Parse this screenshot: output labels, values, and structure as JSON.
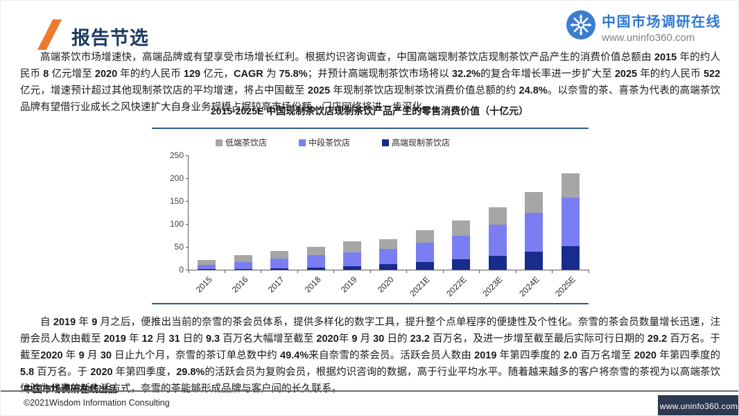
{
  "header": {
    "title": "报告节选",
    "logo_name": "中国市场调研在线",
    "logo_url": "www.uninfo360.com"
  },
  "colors": {
    "accent_orange": "#ee7b2d",
    "title_navy": "#1e3a60",
    "logo_blue": "#2e78cf",
    "chart_frame_blue": "#2d5b8e",
    "footer_bar_navy": "#2c3950"
  },
  "paragraphs": {
    "p1": [
      {
        "t": "高端茶饮市场增速快，高端品牌或有望享受市场增长红利。根据灼识咨询调查，中国高端现制茶饮店现制茶饮产品产生的消费价值总额由 "
      },
      {
        "t": "2015",
        "b": true
      },
      {
        "t": " 年的约人民币 "
      },
      {
        "t": "8",
        "b": true
      },
      {
        "t": " 亿元增至 "
      },
      {
        "t": "2020",
        "b": true
      },
      {
        "t": " 年的约人民币 "
      },
      {
        "t": "129",
        "b": true
      },
      {
        "t": " 亿元，"
      },
      {
        "t": "CAGR",
        "b": true
      },
      {
        "t": " 为 "
      },
      {
        "t": "75.8%",
        "b": true
      },
      {
        "t": "；并预计高端现制茶饮市场将以 "
      },
      {
        "t": "32.2%",
        "b": true
      },
      {
        "t": "的复合年增长率进一步扩大至 "
      },
      {
        "t": "2025",
        "b": true
      },
      {
        "t": " 年的约人民币 "
      },
      {
        "t": "522",
        "b": true
      },
      {
        "t": " 亿元，增速预计超过其他现制茶饮店的平均增速，将占中国截至 "
      },
      {
        "t": "2025",
        "b": true
      },
      {
        "t": " 年现制茶饮店现制茶饮消费价值总额的约 "
      },
      {
        "t": "24.8%",
        "b": true
      },
      {
        "t": "。以奈雪的茶、喜茶为代表的高端茶饮品牌有望借行业成长之风快速扩大自身业务规模占据较高市场份额，门店网络将进一步深化。"
      }
    ],
    "p2": [
      {
        "t": "自 "
      },
      {
        "t": "2019",
        "b": true
      },
      {
        "t": " 年 "
      },
      {
        "t": "9",
        "b": true
      },
      {
        "t": " 月之后，便推出当前的奈雪的茶会员体系，提供多样化的数字工具，提升整个点单程序的便捷性及个性化。奈雪的茶会员数量增长迅速，注册会员人数由截至 "
      },
      {
        "t": "2019",
        "b": true
      },
      {
        "t": " 年 "
      },
      {
        "t": "12",
        "b": true
      },
      {
        "t": " 月 "
      },
      {
        "t": "31",
        "b": true
      },
      {
        "t": " 日的 "
      },
      {
        "t": "9.3",
        "b": true
      },
      {
        "t": " 百万名大幅增至截至 "
      },
      {
        "t": "2020",
        "b": true
      },
      {
        "t": "年 "
      },
      {
        "t": "9",
        "b": true
      },
      {
        "t": " 月 "
      },
      {
        "t": "30",
        "b": true
      },
      {
        "t": " 日的 "
      },
      {
        "t": "23.2",
        "b": true
      },
      {
        "t": " 百万名，及进一步增至截至最后实际可行日期的 "
      },
      {
        "t": "29.2",
        "b": true
      },
      {
        "t": " 百万名。于截至"
      },
      {
        "t": "2020",
        "b": true
      },
      {
        "t": " 年 "
      },
      {
        "t": "9",
        "b": true
      },
      {
        "t": " 月 "
      },
      {
        "t": "30",
        "b": true
      },
      {
        "t": " 日止九个月，奈雪的茶订单总数中约 "
      },
      {
        "t": "49.4%",
        "b": true
      },
      {
        "t": "来自奈雪的茶会员。活跃会员人数由 "
      },
      {
        "t": "2019",
        "b": true
      },
      {
        "t": " 年第四季度的 "
      },
      {
        "t": "2.0",
        "b": true
      },
      {
        "t": " 百万名增至 "
      },
      {
        "t": "2020",
        "b": true
      },
      {
        "t": " 年第四季度的 "
      },
      {
        "t": "5.8",
        "b": true
      },
      {
        "t": " 百万名。于 "
      },
      {
        "t": "2020",
        "b": true
      },
      {
        "t": " 年第四季度，"
      },
      {
        "t": "29.8%",
        "b": true
      },
      {
        "t": "的活跃会员为复购会员，根据灼识咨询的数据，高于行业平均水平。随着越来越多的客户将奈雪的茶视为以高端茶饮体验为代表的新生活方式，奈雪的茶能够形成品牌与客户间的长久联系。"
      }
    ]
  },
  "chart_data": {
    "type": "bar",
    "stacked": true,
    "title": "2015-2025E 中国现制茶饮店现制茶饮产品产生的零售消费价值（十亿元）",
    "categories": [
      "2015",
      "2016",
      "2017",
      "2018",
      "2019",
      "2020",
      "2021E",
      "2022E",
      "2023E",
      "2024E",
      "2025E"
    ],
    "stack_order": "bottom-to-top",
    "series": [
      {
        "name": "高端现制茶饮店",
        "color": "#182c8c",
        "values": [
          0.8,
          1.4,
          2.5,
          4.4,
          7.6,
          12.9,
          17.1,
          22.5,
          29.8,
          39.4,
          52.2
        ]
      },
      {
        "name": "中段茶饮店",
        "color": "#7b7ef2",
        "values": [
          10,
          16,
          22,
          27,
          31,
          32,
          42,
          52,
          68,
          85,
          105
        ]
      },
      {
        "name": "低端茶饮店",
        "color": "#a6a6a6",
        "values": [
          11,
          14,
          16,
          19,
          23,
          22,
          27,
          33,
          38,
          46,
          53
        ]
      }
    ],
    "xlabel": "",
    "ylabel": "",
    "ylim": [
      0,
      250
    ],
    "yticks": [
      0,
      50,
      100,
      150,
      200,
      250
    ],
    "legend_position": "top",
    "grid": false
  },
  "footer": {
    "produced_by": "中国市场调研在线出品",
    "copyright": "©2021Wisdom Information Consulting",
    "site": "www.uninfo360.com"
  }
}
